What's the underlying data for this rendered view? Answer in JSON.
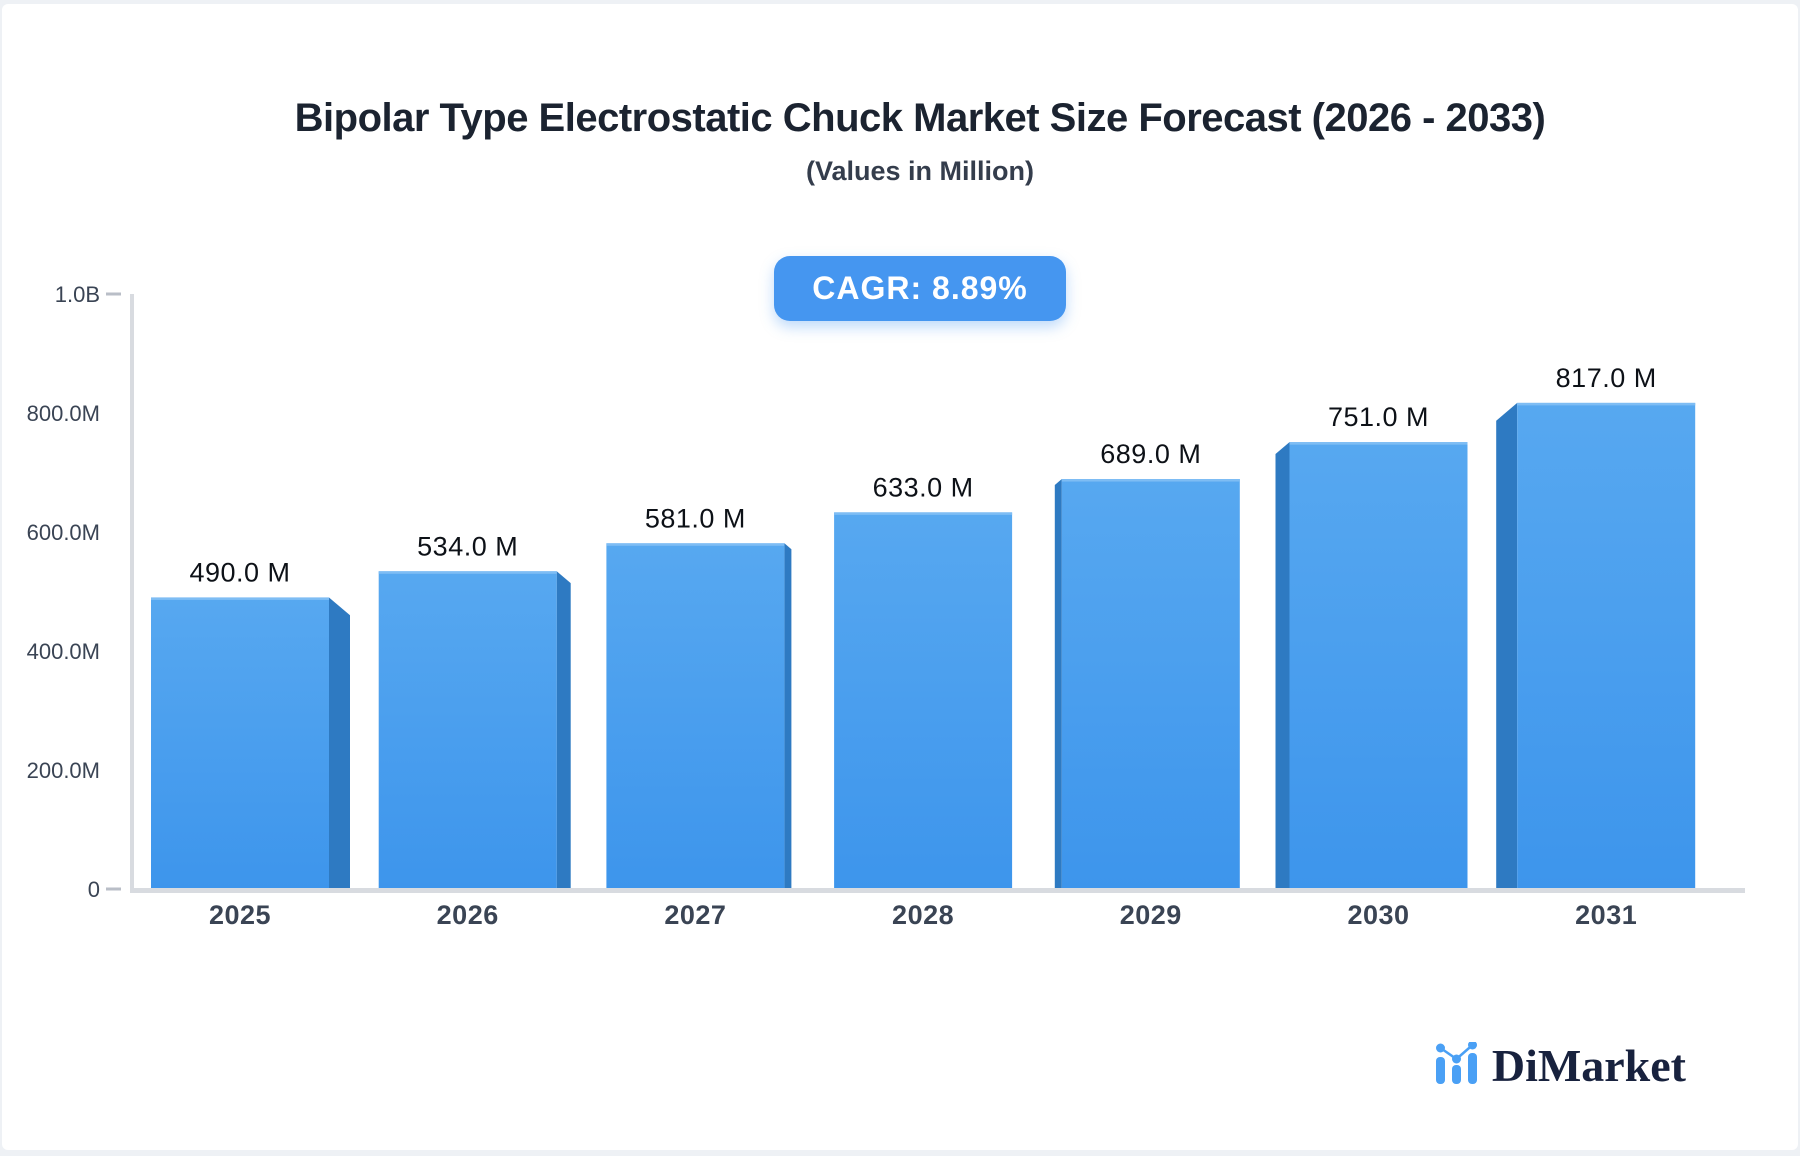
{
  "header": {
    "title": "Bipolar Type Electrostatic Chuck Market Size Forecast (2026 - 2033)",
    "subtitle": "(Values in Million)"
  },
  "badge": {
    "label": "CAGR: 8.89%"
  },
  "chart_data": {
    "type": "bar",
    "title": "Bipolar Type Electrostatic Chuck Market Size Forecast (2026 - 2033)",
    "subtitle": "(Values in Million)",
    "categories": [
      "2025",
      "2026",
      "2027",
      "2028",
      "2029",
      "2030",
      "2031"
    ],
    "values": [
      490,
      534,
      581,
      633,
      689,
      751,
      817
    ],
    "value_labels": [
      "490.0 M",
      "534.0 M",
      "581.0 M",
      "633.0 M",
      "689.0 M",
      "751.0 M",
      "817.0 M"
    ],
    "unit_suffix": "M",
    "ylim": [
      0,
      1000
    ],
    "y_ticks": [
      {
        "label": "1.0B",
        "value": 1000,
        "dash": true
      },
      {
        "label": "800.0M",
        "value": 800,
        "dash": false
      },
      {
        "label": "600.0M",
        "value": 600,
        "dash": false
      },
      {
        "label": "400.0M",
        "value": 400,
        "dash": false
      },
      {
        "label": "200.0M",
        "value": 200,
        "dash": false
      },
      {
        "label": "0",
        "value": 0,
        "dash": true
      }
    ],
    "grid": false,
    "legend": "none",
    "bar_style": "3d-center-perspective"
  },
  "colors": {
    "accent": "#4596f0",
    "bar_face_top": "#57a8f0",
    "bar_face_bottom": "#3d95ec",
    "bar_top_highlight": "#7ebdf4",
    "bar_side": "#2e7ac2",
    "axis_line": "#d8dbe0",
    "tick_dash": "#b9bec7",
    "value_label": "#0d1117",
    "axis_label": "#3a4454",
    "brand_navy": "#18223e",
    "brand_blue": "#4aa0f5"
  },
  "watermark": {
    "text": "DiMarket",
    "icon": "mini-bar-chart-icon"
  }
}
